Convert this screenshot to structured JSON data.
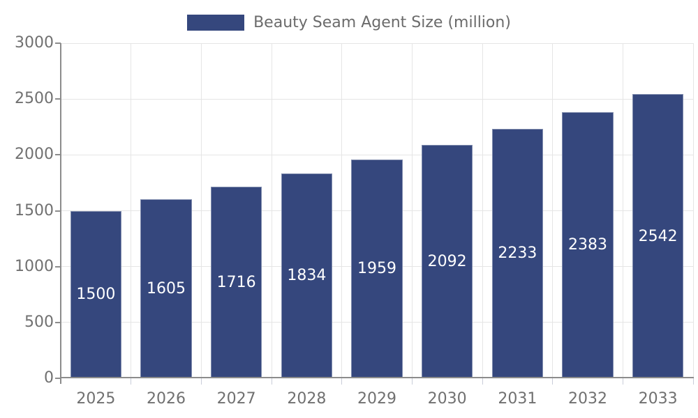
{
  "legend": {
    "items": [
      {
        "label": "Beauty Seam Agent Size (million)",
        "swatch_color": "#35477d"
      }
    ]
  },
  "chart_data": {
    "type": "bar",
    "title": "Beauty Seam Agent Size (million)",
    "categories": [
      "2025",
      "2026",
      "2027",
      "2028",
      "2029",
      "2030",
      "2031",
      "2032",
      "2033"
    ],
    "series": [
      {
        "name": "Beauty Seam Agent Size (million)",
        "values": [
          1500,
          1605,
          1716,
          1834,
          1959,
          2092,
          2233,
          2383,
          2542
        ]
      }
    ],
    "xlabel": "",
    "ylabel": "",
    "ylim": [
      0,
      3000
    ],
    "yticks": [
      0,
      500,
      1000,
      1500,
      2000,
      2500,
      3000
    ],
    "grid": true,
    "legend_position": "top-center",
    "value_label_position": "inside-center"
  },
  "colors": {
    "bar": "#35477d",
    "bar_value_text": "#ffffff",
    "axis_line": "#8c8c8c",
    "gridline": "#e5e5e5",
    "x_boundary_tick": "#c9cdd9",
    "axis_tick_text": "#707070",
    "legend_text": "#6b6b6b",
    "background": "#ffffff"
  }
}
